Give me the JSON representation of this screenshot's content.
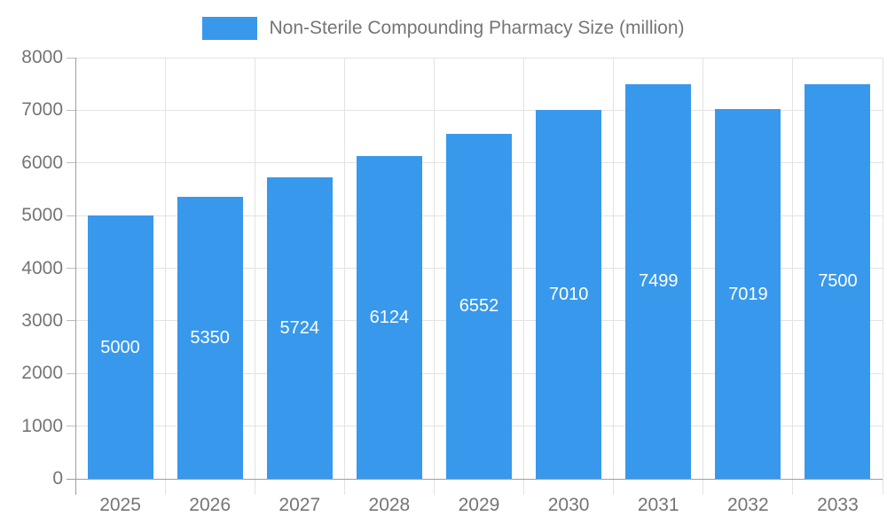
{
  "legend": {
    "label": "Non-Sterile Compounding Pharmacy Size (million)"
  },
  "colors": {
    "bar": "#3898ec",
    "grid": "#e3e3e3",
    "axis": "#9e9e9e",
    "tick": "#bdbdbd",
    "tick_text": "#757575",
    "value_text": "#ffffff",
    "background": "#ffffff"
  },
  "chart_data": {
    "type": "bar",
    "categories": [
      "2025",
      "2026",
      "2027",
      "2028",
      "2029",
      "2030",
      "2031",
      "2032",
      "2033"
    ],
    "values": [
      5000,
      5350,
      5724,
      6124,
      6552,
      7010,
      7499,
      7019,
      7500
    ],
    "series_name": "Non-Sterile Compounding Pharmacy Size (million)",
    "title": "",
    "xlabel": "",
    "ylabel": "",
    "ylim": [
      0,
      8000
    ],
    "y_ticks": [
      0,
      1000,
      2000,
      3000,
      4000,
      5000,
      6000,
      7000,
      8000
    ],
    "grid": true,
    "legend_position": "top-center",
    "value_labels": "inside-center-white"
  }
}
